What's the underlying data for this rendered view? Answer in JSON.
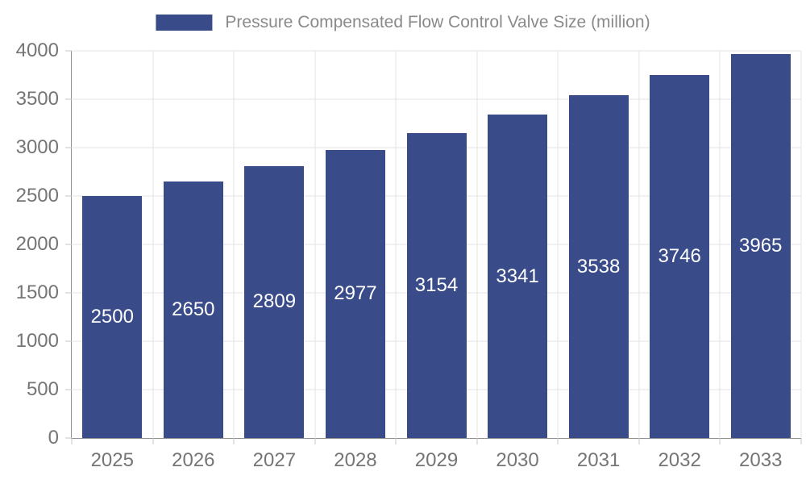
{
  "legend": {
    "label": "Pressure Compensated Flow Control Valve Size (million)"
  },
  "chart_data": {
    "type": "bar",
    "title": "Pressure Compensated Flow Control Valve Size (million)",
    "series_name": "Pressure Compensated Flow Control Valve Size (million)",
    "categories": [
      "2025",
      "2026",
      "2027",
      "2028",
      "2029",
      "2030",
      "2031",
      "2032",
      "2033"
    ],
    "values": [
      2500,
      2650,
      2809,
      2977,
      3154,
      3341,
      3538,
      3746,
      3965
    ],
    "xlabel": "",
    "ylabel": "",
    "ylim": [
      0,
      4000
    ],
    "y_ticks": [
      0,
      500,
      1000,
      1500,
      2000,
      2500,
      3000,
      3500,
      4000
    ],
    "grid": true,
    "legend_position": "top",
    "value_labels": "inside-center"
  },
  "colors": {
    "bar": "#3A4B89",
    "grid": "#e3e3e3",
    "axis": "#919191",
    "tick": "#c6c6c6",
    "tick_label": "#757575",
    "legend_text": "#8a8a8a",
    "value_label": "#ffffff",
    "background": "#ffffff"
  }
}
